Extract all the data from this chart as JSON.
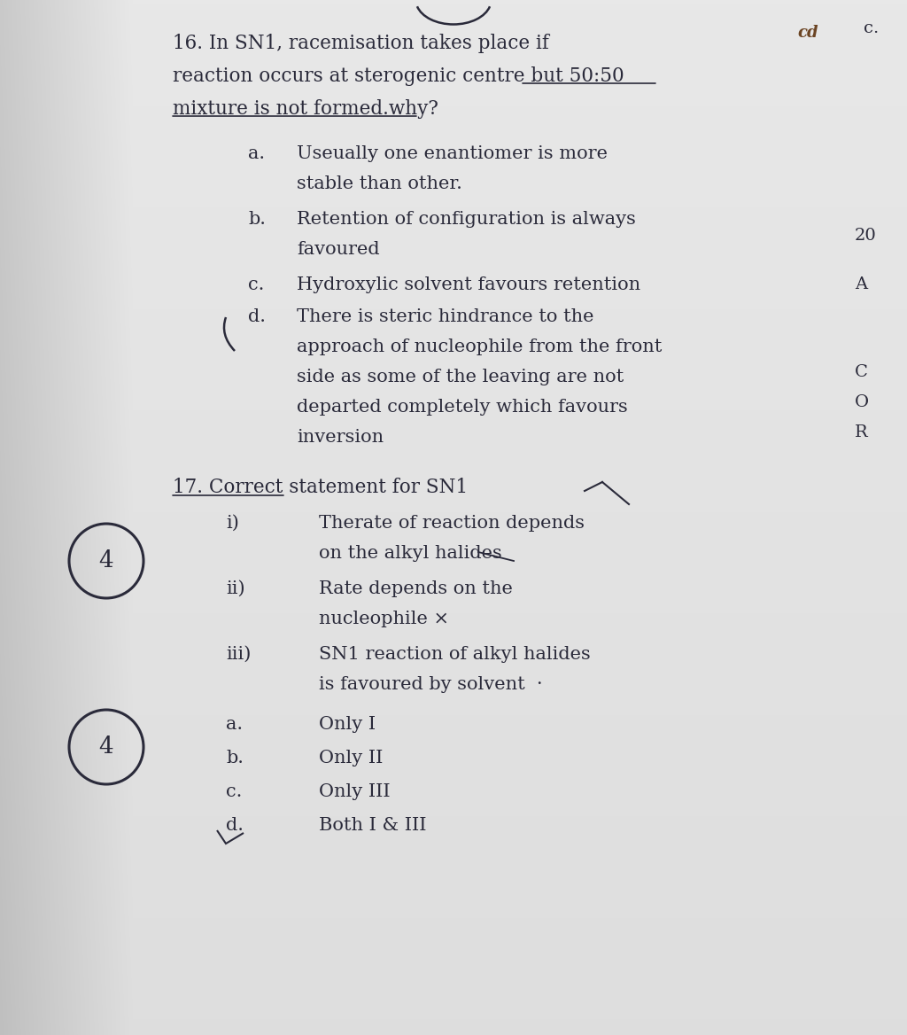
{
  "bg_color": "#c8c8c8",
  "paper_color": "#e2e2e2",
  "text_color": "#2a2a3a",
  "ink_color": "#2a2a4a",
  "q16_title_line1": "16. In SN1, racemisation takes place if",
  "q16_title_line2": "reaction occurs at sterogenic centre but 50:50",
  "q16_title_line3": "mixture is not formed.why?",
  "q16_opts": [
    [
      "a.",
      "Useually one enantiomer is more"
    ],
    [
      "",
      "stable than other."
    ],
    [
      "b.",
      "Retention of configuration is always"
    ],
    [
      "",
      "favoured"
    ],
    [
      "c.",
      "Hydroxylic solvent favours retention"
    ],
    [
      "d.",
      "There is steric hindrance to the"
    ],
    [
      "",
      "approach of nucleophile from the front"
    ],
    [
      "",
      "side as some of the leaving are not"
    ],
    [
      "",
      "departed completely which favours"
    ],
    [
      "",
      "inversion"
    ]
  ],
  "q17_title": "17. Correct statement for SN1",
  "q17_romans": [
    [
      "i)",
      "Therate of reaction depends"
    ],
    [
      "",
      "on the alkyl halides"
    ],
    [
      "ii)",
      "Rate depends on the"
    ],
    [
      "",
      "nucleophile ×"
    ],
    [
      "iii)",
      "SN1 reaction of alkyl halides"
    ],
    [
      "",
      "is favoured by solvent  ·"
    ]
  ],
  "q17_opts": [
    [
      "a.",
      "Only I"
    ],
    [
      "b.",
      "Only II"
    ],
    [
      "c.",
      "Only III"
    ],
    [
      "d.",
      "Both I & III"
    ]
  ],
  "right_col": [
    "c.",
    "20",
    "A",
    "C",
    "O",
    "R"
  ],
  "corner_label": "cd",
  "circle4_1": [
    0.115,
    0.455
  ],
  "circle4_2": [
    0.115,
    0.138
  ],
  "fs": 15.0,
  "lh": 0.044
}
